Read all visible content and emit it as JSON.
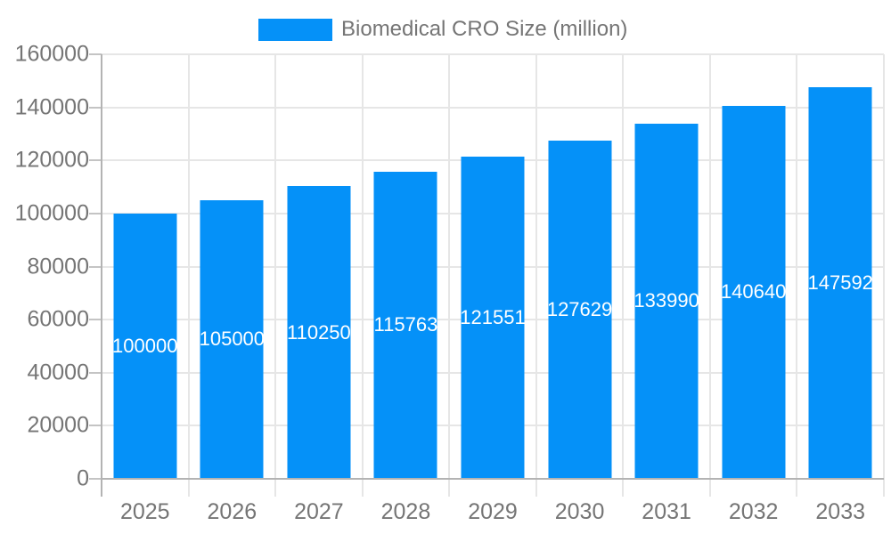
{
  "colors": {
    "bar": "#0591f8",
    "bar_label_text": "#ffffff",
    "grid": "#e6e6e6",
    "axis_line": "#b3b3b3",
    "tick": "#c4c4c4",
    "axis_text": "#757575",
    "background": "#ffffff"
  },
  "legend": {
    "series_name": "Biomedical CRO Size (million)"
  },
  "chart_data": {
    "type": "bar",
    "title": "Biomedical CRO Size (million)",
    "legend_position": "top",
    "grid": true,
    "categories": [
      "2025",
      "2026",
      "2027",
      "2028",
      "2029",
      "2030",
      "2031",
      "2032",
      "2033"
    ],
    "values": [
      100000,
      105000,
      110250,
      115763,
      121551,
      127629,
      133990,
      140640,
      147592
    ],
    "xlabel": "",
    "ylabel": "",
    "ylim": [
      0,
      160000
    ],
    "ytick_step": 20000,
    "yticks": [
      0,
      20000,
      40000,
      60000,
      80000,
      100000,
      120000,
      140000,
      160000
    ]
  }
}
